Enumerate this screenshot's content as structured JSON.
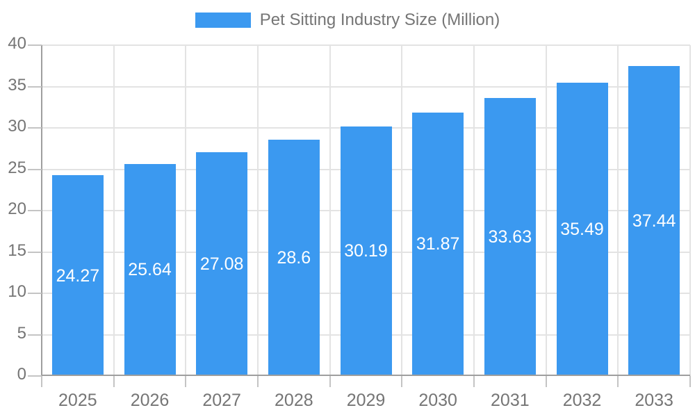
{
  "legend": {
    "label": "Pet Sitting Industry Size (Million)"
  },
  "colors": {
    "bar": "#3b99f0",
    "bar_label": "#ffffff",
    "axis_line": "#9e9e9e",
    "tick": "#c4c4c4",
    "grid": "#e3e3e3",
    "text": "#757575",
    "background": "#ffffff"
  },
  "chart_data": {
    "type": "bar",
    "title": "Pet Sitting Industry Size (Million)",
    "series_name": "Pet Sitting Industry Size (Million)",
    "categories": [
      "2025",
      "2026",
      "2027",
      "2028",
      "2029",
      "2030",
      "2031",
      "2032",
      "2033"
    ],
    "values": [
      24.27,
      25.64,
      27.08,
      28.6,
      30.19,
      31.87,
      33.63,
      35.49,
      37.44
    ],
    "bar_labels": [
      "24.27",
      "25.64",
      "27.08",
      "28.6",
      "30.19",
      "31.87",
      "33.63",
      "35.49",
      "37.44"
    ],
    "y_tick_labels": [
      "0",
      "5",
      "10",
      "15",
      "20",
      "25",
      "30",
      "35",
      "40"
    ],
    "xlabel": "",
    "ylabel": "",
    "ylim": [
      0,
      40
    ],
    "ytick_step": 5,
    "grid": true,
    "bar_label_position": "center-inside",
    "legend_position": "top-center"
  }
}
